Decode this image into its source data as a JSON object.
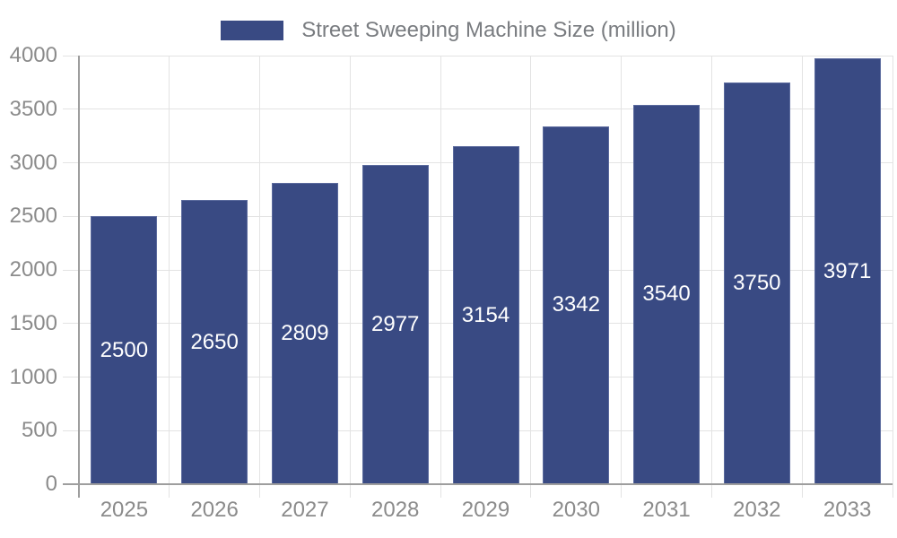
{
  "chart_data": {
    "type": "bar",
    "title": "Street Sweeping Machine Size (million)",
    "legend": {
      "position": "top"
    },
    "categories": [
      "2025",
      "2026",
      "2027",
      "2028",
      "2029",
      "2030",
      "2031",
      "2032",
      "2033"
    ],
    "values": [
      2500,
      2650,
      2809,
      2977,
      3154,
      3342,
      3540,
      3750,
      3971
    ],
    "xlabel": "",
    "ylabel": "",
    "ylim": [
      0,
      4000
    ],
    "yticks": [
      0,
      500,
      1000,
      1500,
      2000,
      2500,
      3000,
      3500,
      4000
    ],
    "grid": true,
    "value_labels_position": "inside-center",
    "colors": {
      "bar": "#394a83",
      "bar_border": "#5c6b9e",
      "bar_label": "#ffffff",
      "legend_text": "#797c80",
      "axis_text": "#8b8b8b",
      "grid_line": "#e3e3e3",
      "axis_line": "#9e9e9e",
      "background": "#ffffff"
    }
  }
}
